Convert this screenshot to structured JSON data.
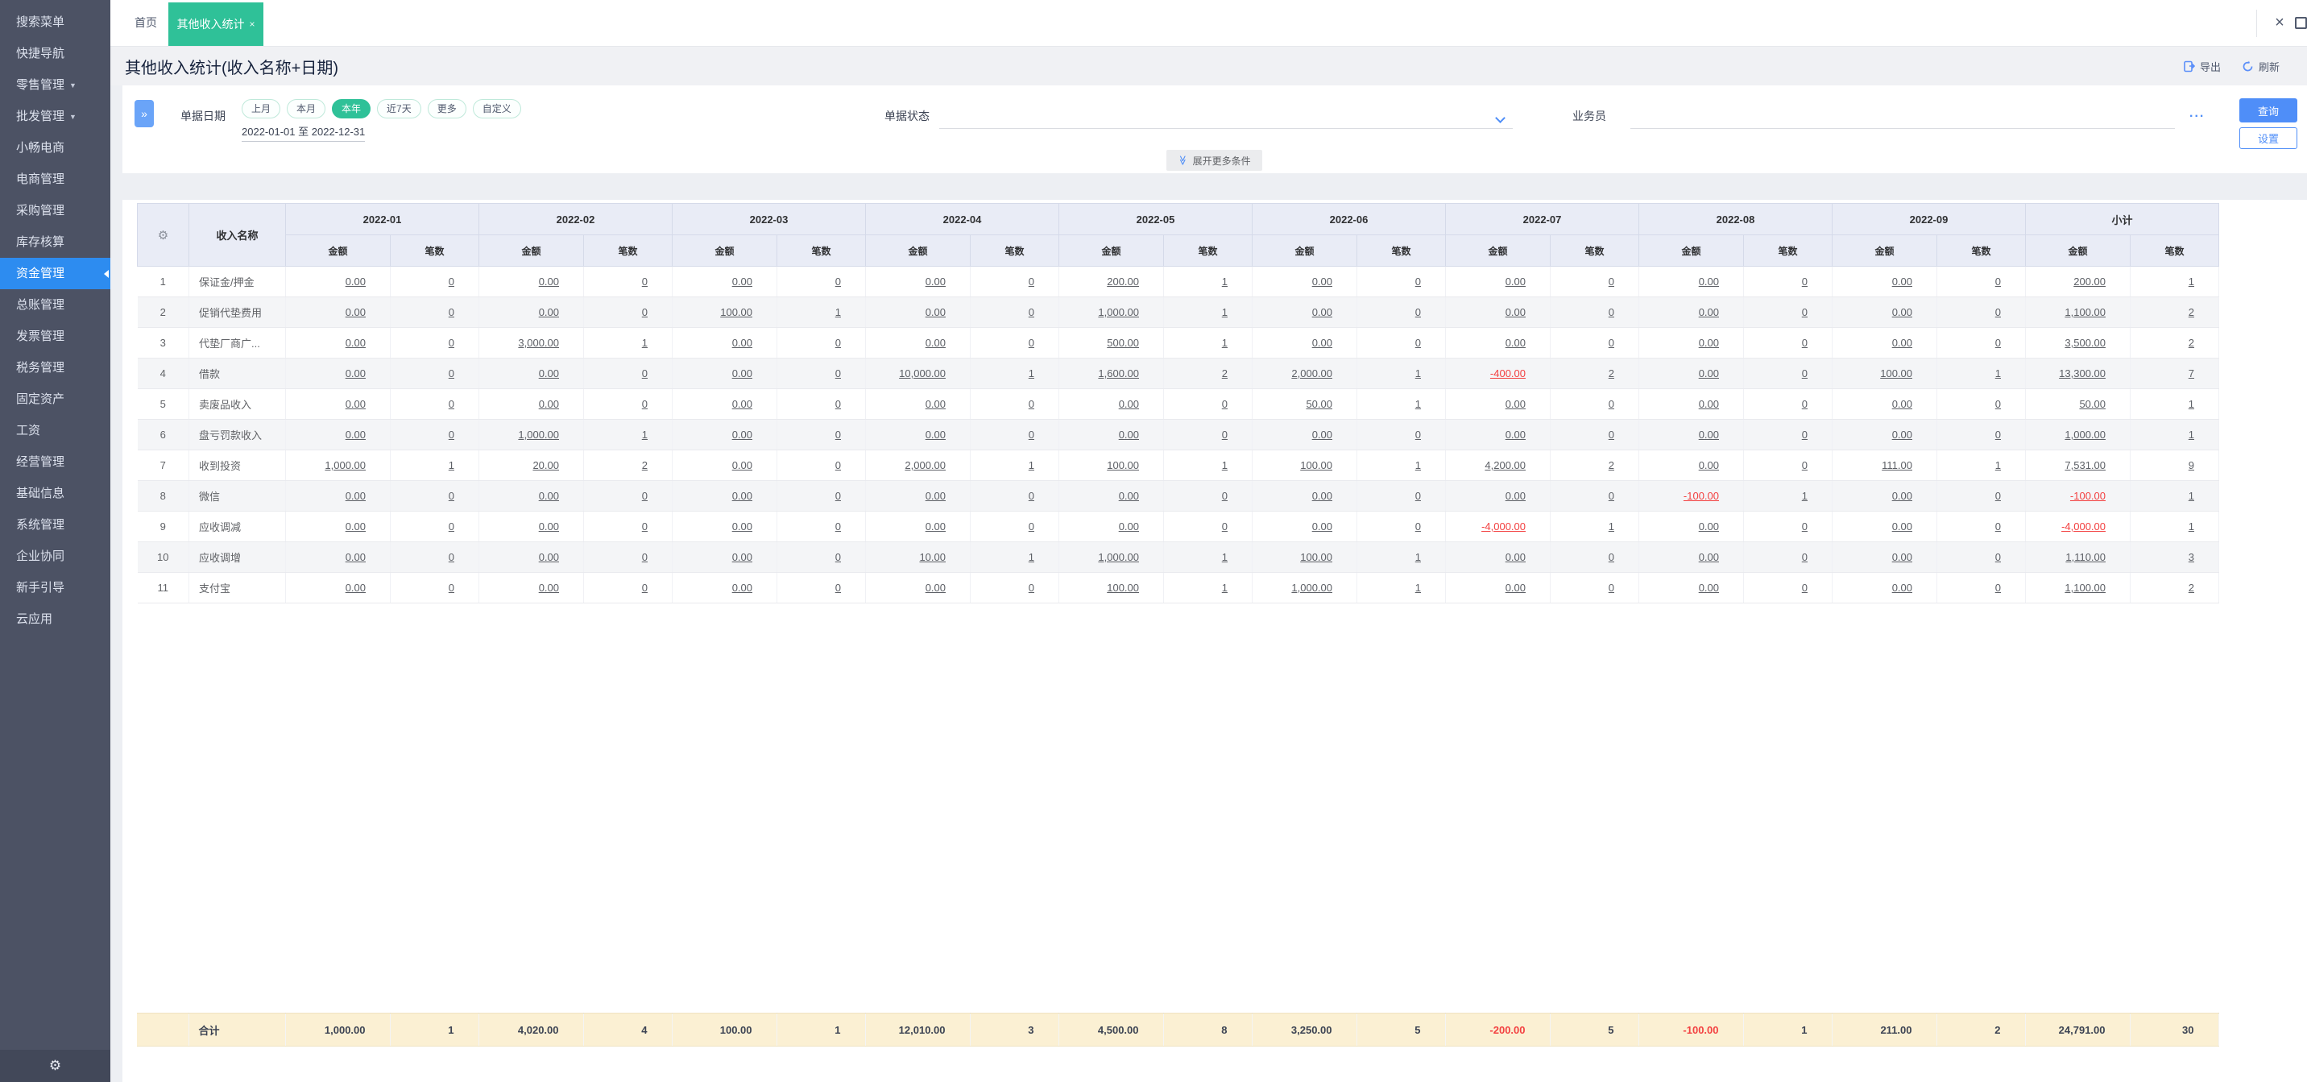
{
  "colors": {
    "accent_blue": "#4f8ef8",
    "accent_green": "#2fc198",
    "sidebar_active_blue": "#2d8cf0",
    "negative_red": "#f34141",
    "total_row_bg": "#fbf0d3"
  },
  "sidebar": {
    "items": [
      {
        "label": "搜索菜单"
      },
      {
        "label": "快捷导航"
      },
      {
        "label": "零售管理",
        "caret": true
      },
      {
        "label": "批发管理",
        "caret": true
      },
      {
        "label": "小畅电商"
      },
      {
        "label": "电商管理"
      },
      {
        "label": "采购管理"
      },
      {
        "label": "库存核算"
      },
      {
        "label": "资金管理",
        "active": true
      },
      {
        "label": "总账管理"
      },
      {
        "label": "发票管理"
      },
      {
        "label": "税务管理"
      },
      {
        "label": "固定资产"
      },
      {
        "label": "工资"
      },
      {
        "label": "经营管理"
      },
      {
        "label": "基础信息"
      },
      {
        "label": "系统管理"
      },
      {
        "label": "企业协同"
      },
      {
        "label": "新手引导"
      },
      {
        "label": "云应用"
      }
    ],
    "footer_gear_icon": "⚙"
  },
  "tabbar": {
    "home_tab": "首页",
    "active_tab": "其他收入统计",
    "close_glyph": "×"
  },
  "header": {
    "title": "其他收入统计(收入名称+日期)",
    "export_label": "导出",
    "refresh_label": "刷新"
  },
  "filters": {
    "date_label": "单据日期",
    "date_pills": [
      "上月",
      "本月",
      "本年",
      "近7天",
      "更多",
      "自定义"
    ],
    "active_pill": "本年",
    "date_start": "2022-01-01",
    "date_separator": "至",
    "date_end": "2022-12-31",
    "status_label": "单据状态",
    "salesman_label": "业务员",
    "more_dots": "...",
    "query_label": "查询",
    "settings_label": "设置",
    "expand_more_label": "展开更多条件",
    "expand_more_glyph": "≫",
    "collapse_glyph": "»"
  },
  "table": {
    "gear_icon": "⚙",
    "name_header": "收入名称",
    "amount_header": "金额",
    "count_header": "笔数",
    "month_groups": [
      "2022-01",
      "2022-02",
      "2022-03",
      "2022-04",
      "2022-05",
      "2022-06",
      "2022-07",
      "2022-08",
      "2022-09",
      "小计"
    ],
    "rows": [
      {
        "index": "1",
        "name": "保证金/押金",
        "values": [
          "0.00",
          "0",
          "0.00",
          "0",
          "0.00",
          "0",
          "0.00",
          "0",
          "200.00",
          "1",
          "0.00",
          "0",
          "0.00",
          "0",
          "0.00",
          "0",
          "0.00",
          "0",
          "200.00",
          "1"
        ]
      },
      {
        "index": "2",
        "name": "促销代垫费用",
        "values": [
          "0.00",
          "0",
          "0.00",
          "0",
          "100.00",
          "1",
          "0.00",
          "0",
          "1,000.00",
          "1",
          "0.00",
          "0",
          "0.00",
          "0",
          "0.00",
          "0",
          "0.00",
          "0",
          "1,100.00",
          "2"
        ]
      },
      {
        "index": "3",
        "name": "代垫厂商广...",
        "values": [
          "0.00",
          "0",
          "3,000.00",
          "1",
          "0.00",
          "0",
          "0.00",
          "0",
          "500.00",
          "1",
          "0.00",
          "0",
          "0.00",
          "0",
          "0.00",
          "0",
          "0.00",
          "0",
          "3,500.00",
          "2"
        ]
      },
      {
        "index": "4",
        "name": "借款",
        "values": [
          "0.00",
          "0",
          "0.00",
          "0",
          "0.00",
          "0",
          "10,000.00",
          "1",
          "1,600.00",
          "2",
          "2,000.00",
          "1",
          "-400.00",
          "2",
          "0.00",
          "0",
          "100.00",
          "1",
          "13,300.00",
          "7"
        ]
      },
      {
        "index": "5",
        "name": "卖废品收入",
        "values": [
          "0.00",
          "0",
          "0.00",
          "0",
          "0.00",
          "0",
          "0.00",
          "0",
          "0.00",
          "0",
          "50.00",
          "1",
          "0.00",
          "0",
          "0.00",
          "0",
          "0.00",
          "0",
          "50.00",
          "1"
        ]
      },
      {
        "index": "6",
        "name": "盘亏罚款收入",
        "values": [
          "0.00",
          "0",
          "1,000.00",
          "1",
          "0.00",
          "0",
          "0.00",
          "0",
          "0.00",
          "0",
          "0.00",
          "0",
          "0.00",
          "0",
          "0.00",
          "0",
          "0.00",
          "0",
          "1,000.00",
          "1"
        ]
      },
      {
        "index": "7",
        "name": "收到投资",
        "values": [
          "1,000.00",
          "1",
          "20.00",
          "2",
          "0.00",
          "0",
          "2,000.00",
          "1",
          "100.00",
          "1",
          "100.00",
          "1",
          "4,200.00",
          "2",
          "0.00",
          "0",
          "111.00",
          "1",
          "7,531.00",
          "9"
        ]
      },
      {
        "index": "8",
        "name": "微信",
        "values": [
          "0.00",
          "0",
          "0.00",
          "0",
          "0.00",
          "0",
          "0.00",
          "0",
          "0.00",
          "0",
          "0.00",
          "0",
          "0.00",
          "0",
          "-100.00",
          "1",
          "0.00",
          "0",
          "-100.00",
          "1"
        ]
      },
      {
        "index": "9",
        "name": "应收调减",
        "values": [
          "0.00",
          "0",
          "0.00",
          "0",
          "0.00",
          "0",
          "0.00",
          "0",
          "0.00",
          "0",
          "0.00",
          "0",
          "-4,000.00",
          "1",
          "0.00",
          "0",
          "0.00",
          "0",
          "-4,000.00",
          "1"
        ]
      },
      {
        "index": "10",
        "name": "应收调增",
        "values": [
          "0.00",
          "0",
          "0.00",
          "0",
          "0.00",
          "0",
          "10.00",
          "1",
          "1,000.00",
          "1",
          "100.00",
          "1",
          "0.00",
          "0",
          "0.00",
          "0",
          "0.00",
          "0",
          "1,110.00",
          "3"
        ]
      },
      {
        "index": "11",
        "name": "支付宝",
        "values": [
          "0.00",
          "0",
          "0.00",
          "0",
          "0.00",
          "0",
          "0.00",
          "0",
          "100.00",
          "1",
          "1,000.00",
          "1",
          "0.00",
          "0",
          "0.00",
          "0",
          "0.00",
          "0",
          "1,100.00",
          "2"
        ]
      }
    ],
    "total_label": "合计",
    "total_values": [
      "1,000.00",
      "1",
      "4,020.00",
      "4",
      "100.00",
      "1",
      "12,010.00",
      "3",
      "4,500.00",
      "8",
      "3,250.00",
      "5",
      "-200.00",
      "5",
      "-100.00",
      "1",
      "211.00",
      "2",
      "24,791.00",
      "30"
    ]
  }
}
